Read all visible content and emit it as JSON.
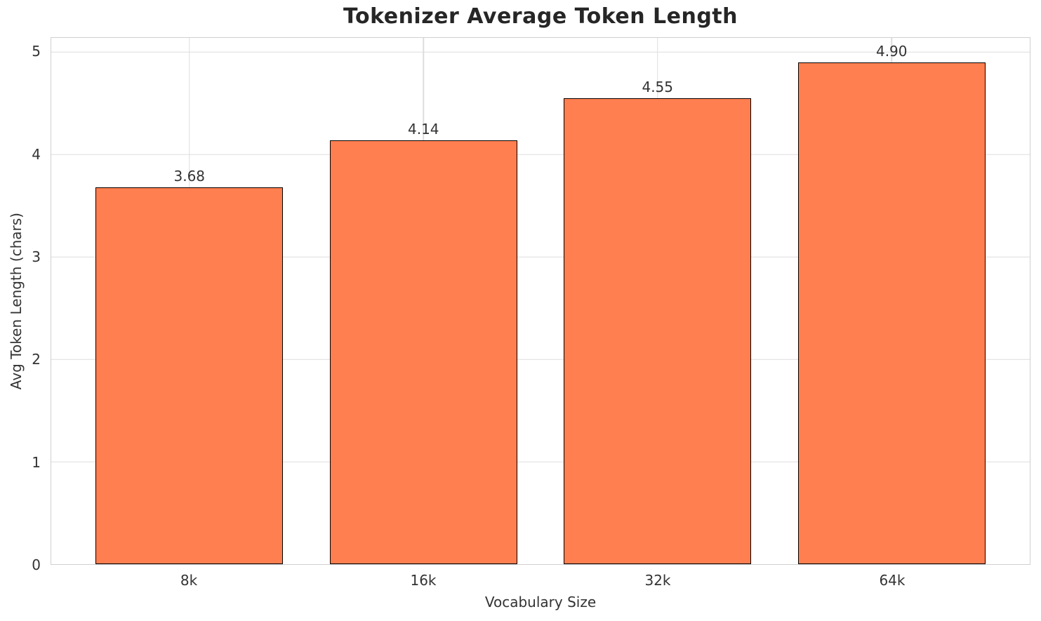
{
  "chart_data": {
    "type": "bar",
    "title": "Tokenizer Average Token Length",
    "xlabel": "Vocabulary Size",
    "ylabel": "Avg Token Length (chars)",
    "categories": [
      "8k",
      "16k",
      "32k",
      "64k"
    ],
    "values": [
      3.68,
      4.14,
      4.55,
      4.9
    ],
    "value_labels": [
      "3.68",
      "4.14",
      "4.55",
      "4.90"
    ],
    "yticks": [
      0,
      1,
      2,
      3,
      4,
      5
    ],
    "ylim": [
      0,
      5.14
    ],
    "x_range": [
      -0.59,
      3.59
    ],
    "bar_width": 0.8,
    "grid": "on",
    "legend": "none",
    "colors": {
      "bar_fill": "#FF7F50",
      "bar_edge": "#000000",
      "grid_line": "#dddddd",
      "spine": "#d0d0d0",
      "title_text": "#262626",
      "label_text": "#333333"
    }
  }
}
